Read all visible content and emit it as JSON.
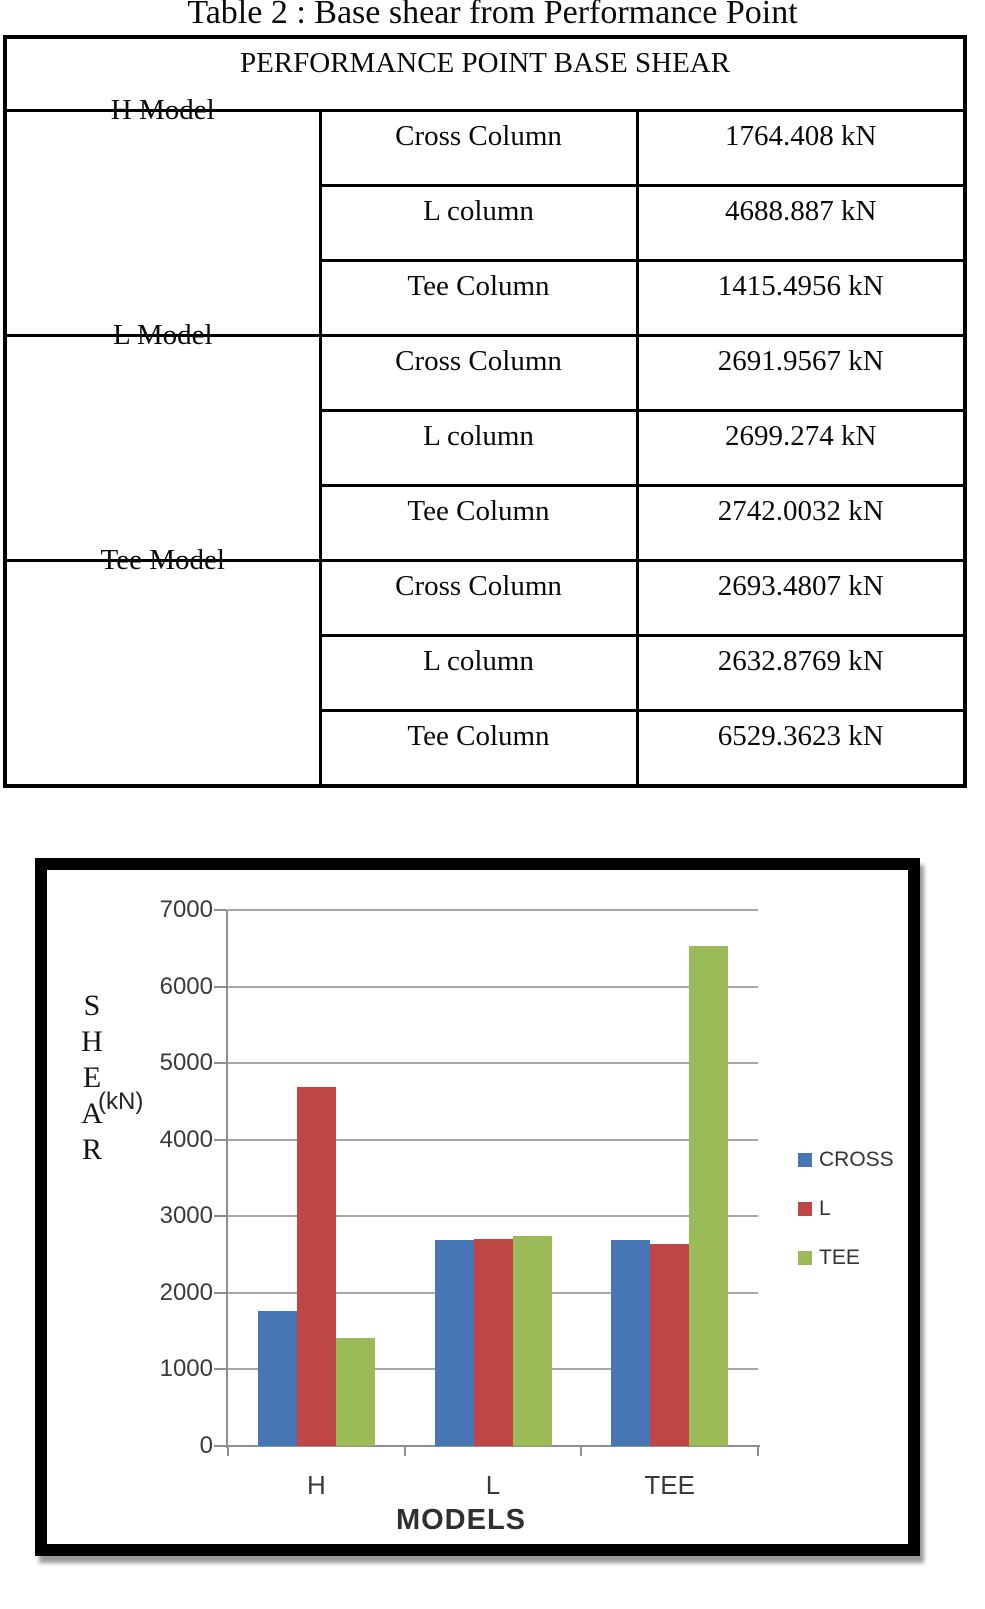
{
  "page": {
    "title": "Table 2 : Base shear from Performance Point"
  },
  "table": {
    "header": "PERFORMANCE POINT BASE SHEAR",
    "groups": [
      {
        "model": "H Model",
        "rows": [
          {
            "column": "Cross Column",
            "value": "1764.408 kN"
          },
          {
            "column": "L column",
            "value": "4688.887 kN"
          },
          {
            "column": "Tee Column",
            "value": "1415.4956 kN"
          }
        ]
      },
      {
        "model": "L Model",
        "rows": [
          {
            "column": "Cross Column",
            "value": "2691.9567 kN"
          },
          {
            "column": "L column",
            "value": "2699.274 kN"
          },
          {
            "column": "Tee Column",
            "value": "2742.0032 kN"
          }
        ]
      },
      {
        "model": "Tee Model",
        "rows": [
          {
            "column": "Cross Column",
            "value": "2693.4807 kN"
          },
          {
            "column": "L column",
            "value": "2632.8769 kN"
          },
          {
            "column": "Tee Column",
            "value": "6529.3623 kN"
          }
        ]
      }
    ]
  },
  "chart_data": {
    "type": "bar",
    "categories": [
      "H",
      "L",
      "TEE"
    ],
    "series": [
      {
        "name": "CROSS",
        "color": "#4677B4",
        "values": [
          1764.408,
          2691.9567,
          2693.4807
        ]
      },
      {
        "name": "L",
        "color": "#BE4745",
        "values": [
          4688.887,
          2699.274,
          2632.8769
        ]
      },
      {
        "name": "TEE",
        "color": "#9BBB59",
        "values": [
          1415.4956,
          2742.0032,
          6529.3623
        ]
      }
    ],
    "xlabel": "MODELS",
    "ylabel_letters": [
      "S",
      "H",
      "E",
      "A",
      "R"
    ],
    "ylabel_unit": "(kN)",
    "ylim": [
      0,
      7000
    ],
    "yticks": [
      7000,
      6000,
      5000,
      4000,
      3000,
      2000,
      1000,
      0
    ],
    "grid": "horizontal",
    "legend_position": "right",
    "grid_color": "#a6a6a6",
    "axis_color": "#8f8f8f"
  }
}
